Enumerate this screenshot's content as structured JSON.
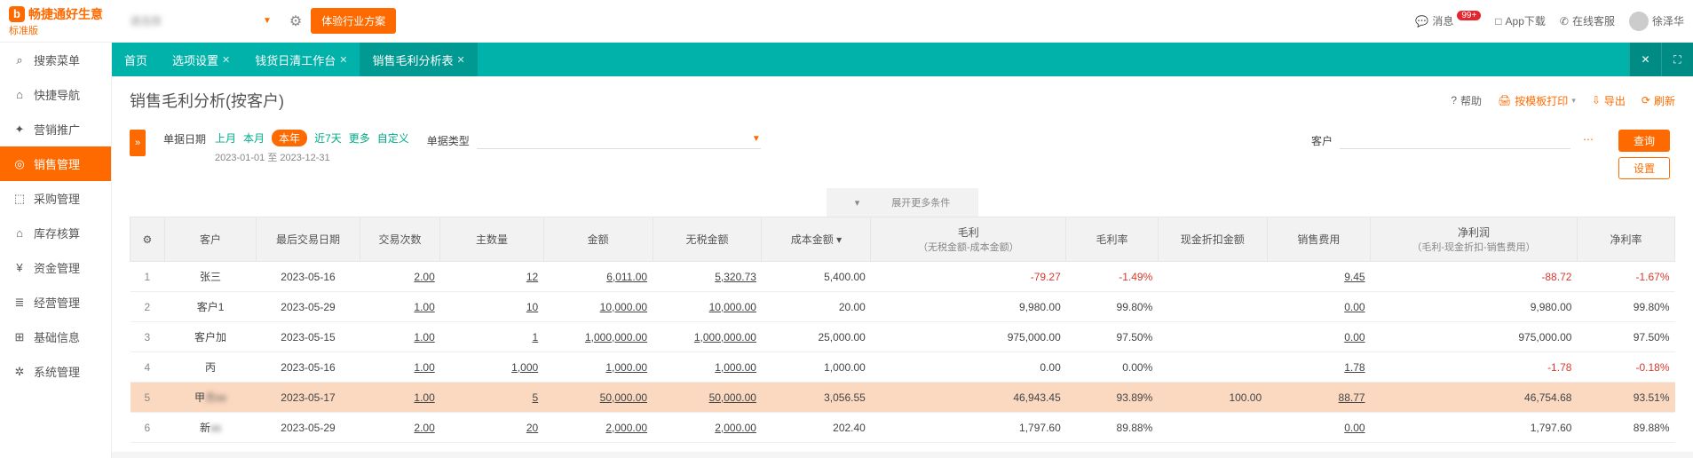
{
  "brand": {
    "name": "畅捷通好生意",
    "edition": "标准版",
    "logo_letter": "b"
  },
  "top": {
    "org_placeholder": "请选择",
    "trial_btn": "体验行业方案",
    "msg": "消息",
    "msg_badge": "99+",
    "download": "App下载",
    "service": "在线客服",
    "user": "徐泽华"
  },
  "sidebar": [
    {
      "icon": "⌕",
      "label": "搜索菜单"
    },
    {
      "icon": "⌂",
      "label": "快捷导航"
    },
    {
      "icon": "✦",
      "label": "营销推广"
    },
    {
      "icon": "◎",
      "label": "销售管理",
      "active": true
    },
    {
      "icon": "⬚",
      "label": "采购管理"
    },
    {
      "icon": "⌂",
      "label": "库存核算"
    },
    {
      "icon": "¥",
      "label": "资金管理"
    },
    {
      "icon": "≣",
      "label": "经营管理"
    },
    {
      "icon": "⊞",
      "label": "基础信息"
    },
    {
      "icon": "✲",
      "label": "系统管理"
    }
  ],
  "tabs": {
    "items": [
      {
        "label": "首页",
        "closable": false
      },
      {
        "label": "选项设置",
        "closable": true
      },
      {
        "label": "钱货日清工作台",
        "closable": true
      },
      {
        "label": "销售毛利分析表",
        "closable": true,
        "active": true
      }
    ]
  },
  "page": {
    "title": "销售毛利分析(按客户)",
    "actions": {
      "help": "帮助",
      "print": "按模板打印",
      "export": "导出",
      "refresh": "刷新"
    }
  },
  "filters": {
    "date_label": "单据日期",
    "opts": [
      "上月",
      "本月",
      "本年",
      "近7天",
      "更多",
      "自定义"
    ],
    "opt_selected": "本年",
    "range": "2023-01-01 至 2023-12-31",
    "type_label": "单据类型",
    "customer_label": "客户",
    "query": "查询",
    "settings": "设置",
    "expand": "展开更多条件"
  },
  "table": {
    "cols": {
      "gear": "⚙",
      "customer": "客户",
      "last_date": "最后交易日期",
      "tx_count": "交易次数",
      "main_qty": "主数量",
      "amount": "金额",
      "net_amount": "无税金额",
      "cost_amount": "成本金额",
      "gross": "毛利",
      "gross_sub": "（无税金额-成本金额）",
      "gross_rate": "毛利率",
      "discount": "现金折扣金额",
      "expense": "销售费用",
      "net_profit": "净利润",
      "net_profit_sub": "（毛利-现金折扣-销售费用）",
      "net_rate": "净利率",
      "cost_caret": "▾"
    },
    "rows": [
      {
        "idx": "1",
        "cust": "张三",
        "date": "2023-05-16",
        "cnt": "2.00",
        "qty": "12",
        "amt": "6,011.00",
        "net": "5,320.73",
        "cost": "5,400.00",
        "gp": "-79.27",
        "gpr": "-1.49%",
        "disc": "",
        "exp": "9.45",
        "np": "-88.72",
        "npr": "-1.67%",
        "neg": true
      },
      {
        "idx": "2",
        "cust": "客户1",
        "date": "2023-05-29",
        "cnt": "1.00",
        "qty": "10",
        "amt": "10,000.00",
        "net": "10,000.00",
        "cost": "20.00",
        "gp": "9,980.00",
        "gpr": "99.80%",
        "disc": "",
        "exp": "0.00",
        "np": "9,980.00",
        "npr": "99.80%"
      },
      {
        "idx": "3",
        "cust": "客户加",
        "date": "2023-05-15",
        "cnt": "1.00",
        "qty": "1",
        "amt": "1,000,000.00",
        "net": "1,000,000.00",
        "cost": "25,000.00",
        "gp": "975,000.00",
        "gpr": "97.50%",
        "disc": "",
        "exp": "0.00",
        "np": "975,000.00",
        "npr": "97.50%"
      },
      {
        "idx": "4",
        "cust": "丙",
        "date": "2023-05-16",
        "cnt": "1.00",
        "qty": "1,000",
        "amt": "1,000.00",
        "net": "1,000.00",
        "cost": "1,000.00",
        "gp": "0.00",
        "gpr": "0.00%",
        "disc": "",
        "exp": "1.78",
        "np": "-1.78",
        "npr": "-0.18%",
        "np_neg": true
      },
      {
        "idx": "5",
        "cust": "甲方",
        "cust_blur": true,
        "date": "2023-05-17",
        "cnt": "1.00",
        "qty": "5",
        "amt": "50,000.00",
        "net": "50,000.00",
        "cost": "3,056.55",
        "gp": "46,943.45",
        "gpr": "93.89%",
        "disc": "100.00",
        "exp": "88.77",
        "np": "46,754.68",
        "npr": "93.51%",
        "hl": true
      },
      {
        "idx": "6",
        "cust": "新",
        "cust_blur": true,
        "date": "2023-05-29",
        "cnt": "2.00",
        "qty": "20",
        "amt": "2,000.00",
        "net": "2,000.00",
        "cost": "202.40",
        "gp": "1,797.60",
        "gpr": "89.88%",
        "disc": "",
        "exp": "0.00",
        "np": "1,797.60",
        "npr": "89.88%"
      }
    ]
  }
}
